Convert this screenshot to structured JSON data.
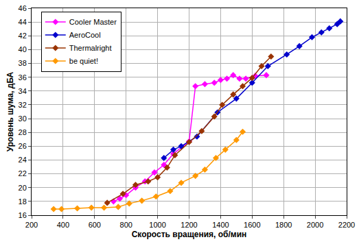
{
  "chart_data": {
    "type": "line",
    "x_label": "Скорость вращения, об/мин",
    "y_label": "Уровень шума, дБА",
    "xlim": [
      200,
      2200
    ],
    "xticks": [
      200,
      400,
      600,
      800,
      1000,
      1200,
      1400,
      1600,
      1800,
      2000,
      2200
    ],
    "ylim": [
      16,
      46
    ],
    "yticks": [
      16,
      18,
      20,
      22,
      24,
      26,
      28,
      30,
      32,
      34,
      36,
      38,
      40,
      42,
      44,
      46
    ],
    "grid": true,
    "legend": "upper left",
    "marker": "diamond",
    "series": [
      {
        "name": "Cooler Master",
        "color": "#ff00ff",
        "x": [
          720,
          760,
          800,
          860,
          920,
          980,
          1040,
          1100,
          1200,
          1240,
          1300,
          1360,
          1400,
          1440,
          1480,
          1520,
          1560,
          1620,
          1690
        ],
        "values": [
          18.0,
          18.4,
          18.9,
          20.0,
          20.9,
          22.2,
          23.3,
          24.9,
          26.7,
          34.7,
          35.0,
          35.2,
          35.6,
          35.8,
          36.3,
          35.8,
          35.8,
          36.2,
          36.3
        ]
      },
      {
        "name": "AeroCool",
        "color": "#0000cc",
        "x": [
          1040,
          1100,
          1150,
          1250,
          1380,
          1500,
          1600,
          1700,
          1820,
          1900,
          1980,
          2040,
          2090,
          2140,
          2160
        ],
        "values": [
          24.3,
          25.5,
          26.0,
          27.4,
          30.9,
          32.9,
          35.2,
          37.6,
          39.3,
          40.5,
          41.8,
          42.5,
          43.1,
          43.7,
          44.1
        ]
      },
      {
        "name": "Thermalright",
        "color": "#993300",
        "x": [
          680,
          780,
          860,
          940,
          1000,
          1060,
          1110,
          1200,
          1280,
          1360,
          1410,
          1480,
          1540,
          1600,
          1660,
          1720
        ],
        "values": [
          17.8,
          19.1,
          20.4,
          20.9,
          21.5,
          22.9,
          24.7,
          26.6,
          28.2,
          30.3,
          32.0,
          33.5,
          34.7,
          35.9,
          37.6,
          39.0
        ]
      },
      {
        "name": "be quiet!",
        "color": "#ff9900",
        "x": [
          340,
          390,
          490,
          580,
          660,
          750,
          820,
          900,
          990,
          1080,
          1150,
          1240,
          1300,
          1370,
          1430,
          1500,
          1540
        ],
        "values": [
          16.9,
          16.9,
          17.0,
          17.1,
          17.1,
          17.2,
          17.7,
          18.1,
          18.7,
          19.5,
          20.7,
          21.7,
          22.6,
          24.3,
          25.5,
          26.9,
          28.1
        ]
      }
    ]
  }
}
